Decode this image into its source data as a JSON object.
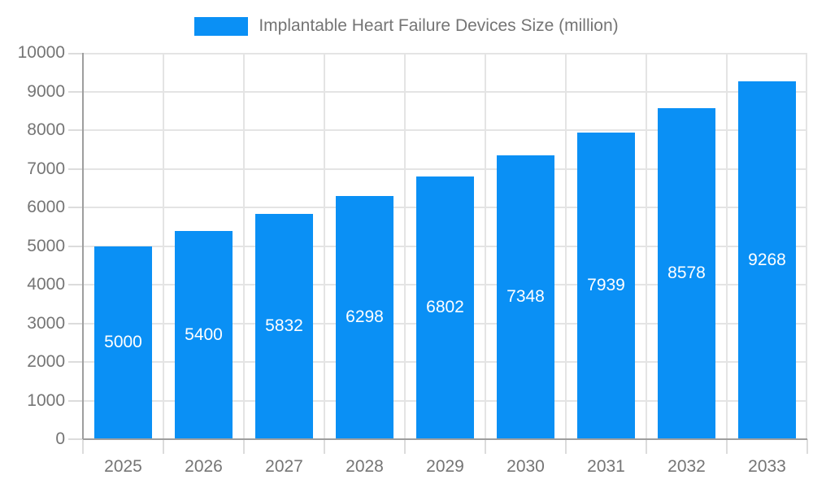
{
  "chart_data": {
    "type": "bar",
    "title": "",
    "series_name": "Implantable Heart Failure Devices Size (million)",
    "categories": [
      "2025",
      "2026",
      "2027",
      "2028",
      "2029",
      "2030",
      "2031",
      "2032",
      "2033"
    ],
    "values": [
      5000,
      5400,
      5832,
      6298,
      6802,
      7348,
      7939,
      8578,
      9268
    ],
    "xlabel": "",
    "ylabel": "",
    "ylim": [
      0,
      10000
    ],
    "ytick_step": 1000,
    "grid": "on",
    "legend_position": "top",
    "bar_value_labels": "inside-center",
    "colors": {
      "bar": "#0A90F5",
      "bar_label": "#FFFFFF",
      "axis": "#9E9E9E",
      "grid": "#E4E4E4",
      "tick": "#DCDCDC",
      "text": "#757575",
      "background": "#FFFFFF"
    }
  }
}
